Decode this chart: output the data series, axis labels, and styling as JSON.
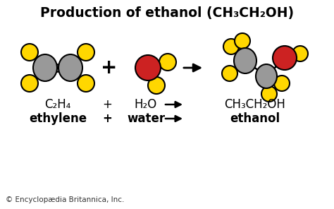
{
  "bg_color": "#ffffff",
  "gray_color": "#999999",
  "yellow_color": "#FFD700",
  "red_color": "#CC2222",
  "black_color": "#000000",
  "copyright": "© Encyclopædia Britannica, Inc.",
  "title": "Production of ethanol (CH₃CH₂OH)",
  "formula_c2h4": "C₂H₄",
  "formula_h2o": "H₂O",
  "formula_ethanol": "CH₃CH₂OH",
  "label_ethylene": "ethylene",
  "label_water": "water",
  "label_ethanol": "ethanol"
}
